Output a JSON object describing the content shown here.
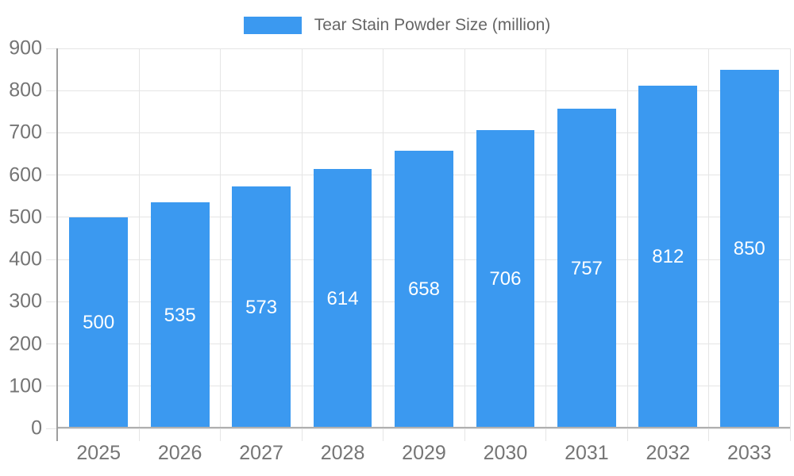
{
  "chart_data": {
    "type": "bar",
    "title": "",
    "series_name": "Tear Stain Powder Size (million)",
    "categories": [
      "2025",
      "2026",
      "2027",
      "2028",
      "2029",
      "2030",
      "2031",
      "2032",
      "2033"
    ],
    "values": [
      500,
      535,
      573,
      614,
      658,
      706,
      757,
      812,
      850
    ],
    "xlabel": "",
    "ylabel": "",
    "ylim": [
      0,
      900
    ],
    "ytick_step": 100,
    "ytick_labels": [
      "0",
      "100",
      "200",
      "300",
      "400",
      "500",
      "600",
      "700",
      "800",
      "900"
    ],
    "grid": true,
    "legend_position": "top",
    "bar_value_labels_visible": true
  },
  "colors": {
    "bar": "#3B99F0",
    "grid_line": "#E5E5E5",
    "axis_line": "#9E9E9E",
    "zero_line": "#B0B0B0",
    "tick_label": "#757575",
    "legend_text": "#666666",
    "value_label": "#FFFFFF",
    "background": "#FFFFFF"
  }
}
